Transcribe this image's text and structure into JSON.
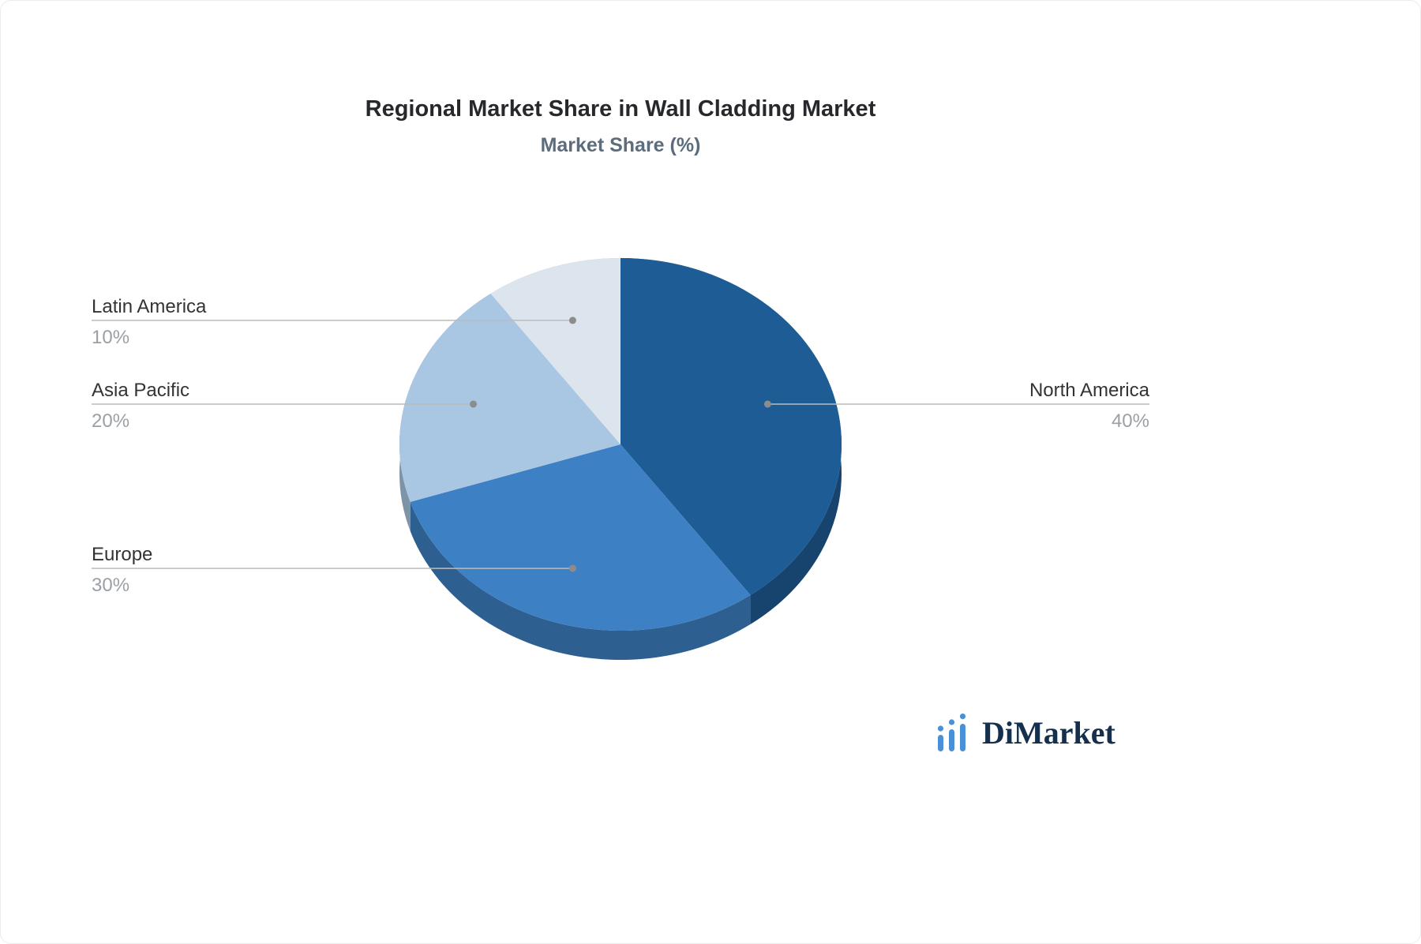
{
  "header": {
    "title": "Regional Market Share in Wall Cladding Market",
    "subtitle": "Market Share (%)"
  },
  "branding": {
    "name": "DiMarket",
    "icon": "bar-chart-icon",
    "icon_color": "#4a90d8",
    "text_color": "#14304d"
  },
  "chart_data": {
    "type": "pie",
    "style": "3d",
    "title": "Regional Market Share in Wall Cladding Market",
    "subtitle": "Market Share (%)",
    "unit": "%",
    "start_angle": "top",
    "direction": "clockwise",
    "legend_position": "none",
    "labels": "leader-lines",
    "categories": [
      "North America",
      "Europe",
      "Asia Pacific",
      "Latin America"
    ],
    "values": [
      40,
      30,
      20,
      10
    ],
    "slices": [
      {
        "label": "North America",
        "value": 40,
        "pct_label": "40%",
        "color": "#1e5c96"
      },
      {
        "label": "Europe",
        "value": 30,
        "pct_label": "30%",
        "color": "#3e80c4"
      },
      {
        "label": "Asia Pacific",
        "value": 20,
        "pct_label": "20%",
        "color": "#a9c6e3"
      },
      {
        "label": "Latin America",
        "value": 10,
        "pct_label": "10%",
        "color": "#dce4ee"
      }
    ],
    "label_style": {
      "name_color": "#333333",
      "pct_color": "#9aa0a6",
      "line_color": "#bbbbbb",
      "dot_color": "#8c8c8c"
    }
  }
}
